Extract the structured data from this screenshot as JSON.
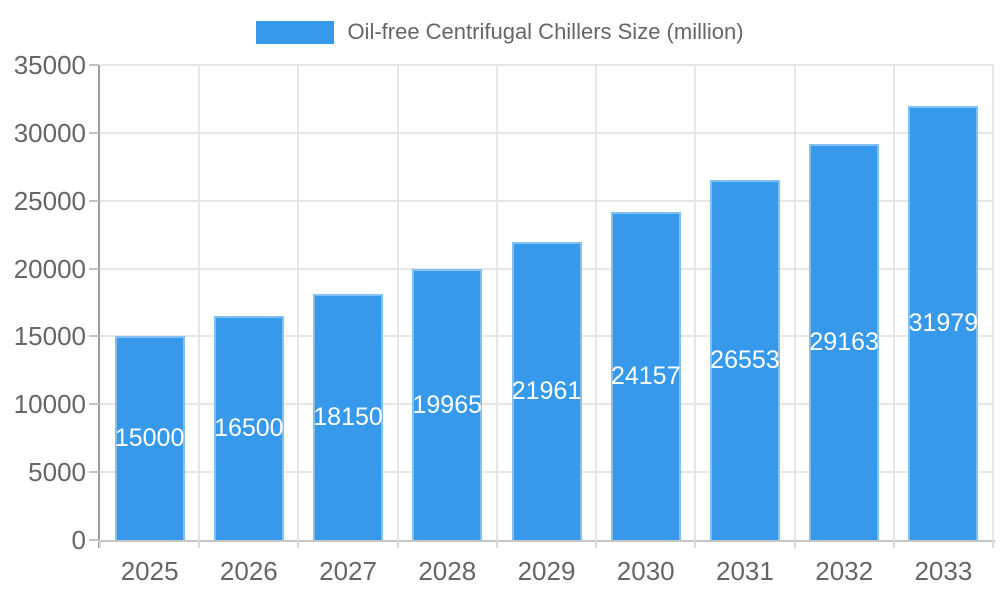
{
  "chart_data": {
    "type": "bar",
    "title": "Oil-free Centrifugal Chillers Size (million)",
    "categories": [
      "2025",
      "2026",
      "2027",
      "2028",
      "2029",
      "2030",
      "2031",
      "2032",
      "2033"
    ],
    "series": [
      {
        "name": "Oil-free Centrifugal Chillers Size (million)",
        "values": [
          15000,
          16500,
          18150,
          19965,
          21961,
          24157,
          26553,
          29163,
          31979
        ]
      }
    ],
    "bar_value_labels": [
      "15000",
      "16500",
      "18150",
      "19965",
      "21961",
      "24157",
      "26553",
      "29163",
      "31979"
    ],
    "xlabel": "",
    "ylabel": "",
    "ylim": [
      0,
      35000
    ],
    "ytick_step": 5000,
    "ytick_labels": [
      "0",
      "5000",
      "10000",
      "15000",
      "20000",
      "25000",
      "30000",
      "35000"
    ],
    "grid": true,
    "legend_position": "top",
    "bar_color": "#3699ec",
    "bar_label_color": "#ffffff",
    "axis_text_color": "#666666",
    "gridline_color": "#e7e7e7"
  }
}
